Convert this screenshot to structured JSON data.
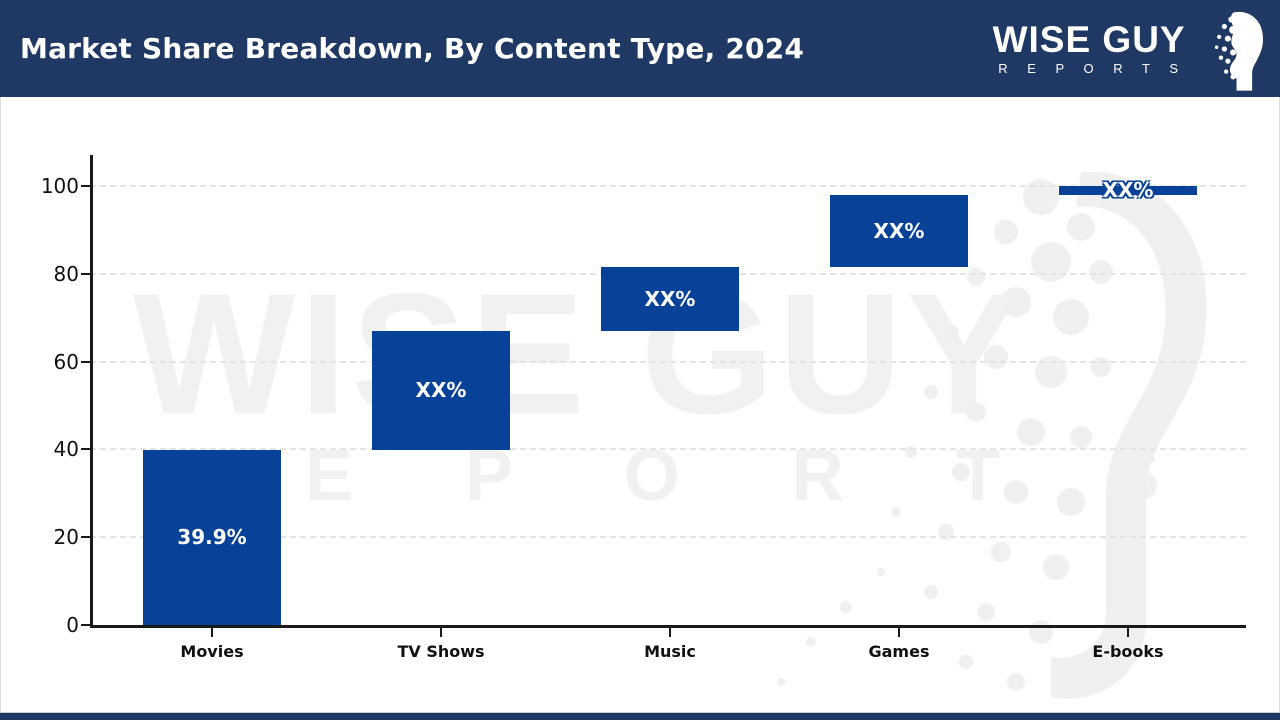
{
  "header": {
    "title": "Market Share Breakdown, By Content Type, 2024",
    "bg_color": "#1f3864",
    "logo": {
      "wordmark": "WISE GUY",
      "subtext": "R E P O R T S"
    }
  },
  "watermark": {
    "line1": "WISE GUY",
    "line2": "R E P O R T S"
  },
  "chart_data": {
    "type": "bar",
    "subtype": "waterfall",
    "title": "Market Share Breakdown, By Content Type, 2024",
    "categories": [
      "Movies",
      "TV Shows",
      "Music",
      "Games",
      "E-books"
    ],
    "segments": [
      {
        "category": "Movies",
        "start": 0,
        "end": 39.9,
        "label": "39.9%"
      },
      {
        "category": "TV Shows",
        "start": 39.9,
        "end": 67,
        "label": "XX%"
      },
      {
        "category": "Music",
        "start": 67,
        "end": 81.5,
        "label": "XX%"
      },
      {
        "category": "Games",
        "start": 81.5,
        "end": 98,
        "label": "XX%"
      },
      {
        "category": "E-books",
        "start": 98,
        "end": 100,
        "label": "XX%"
      }
    ],
    "bar_color": "#084298",
    "label_color": "#ffffff",
    "ylim": [
      0,
      100
    ],
    "yticks": [
      0,
      20,
      40,
      60,
      80,
      100
    ],
    "grid": "horizontal-dashed",
    "legend": "none"
  }
}
